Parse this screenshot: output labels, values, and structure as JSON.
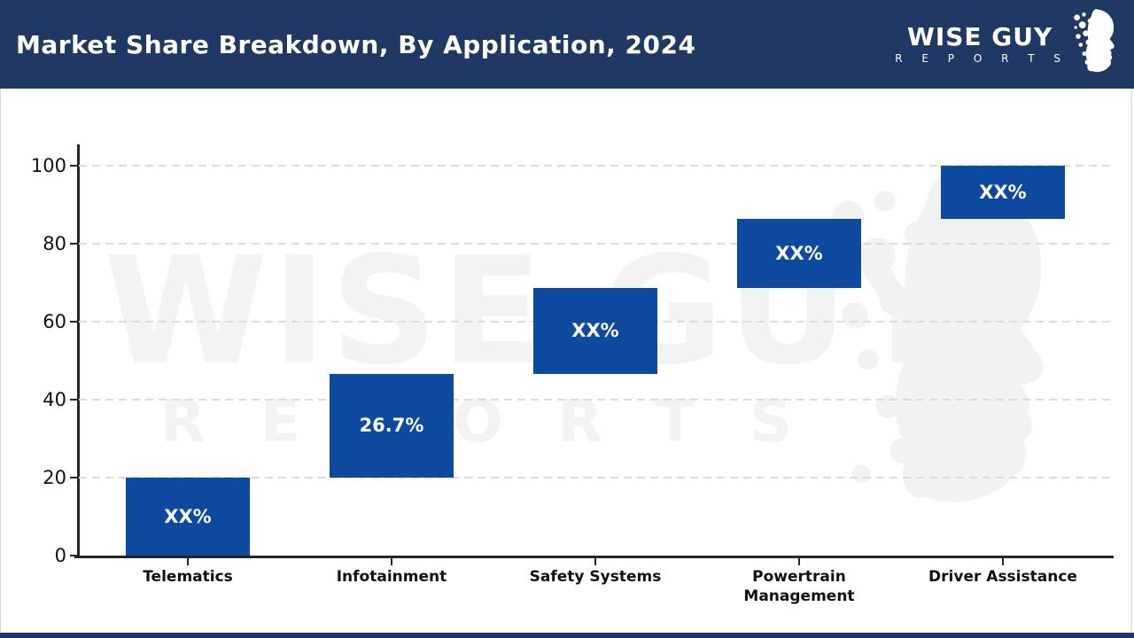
{
  "header": {
    "title": "Market Share Breakdown, By Application, 2024",
    "logo": {
      "wordmark": "WISE GUY",
      "subtext": "R E P O R T S"
    }
  },
  "watermark": {
    "line1": "WISE GUY",
    "line2": "REPORTS"
  },
  "chart_data": {
    "type": "bar",
    "subtype": "waterfall",
    "title": "Market Share Breakdown, By Application, 2024",
    "categories": [
      "Telematics",
      "Infotainment",
      "Safety Systems",
      "Powertrain Management",
      "Driver Assistance"
    ],
    "series": [
      {
        "category": "Telematics",
        "start": 0,
        "end": 20,
        "label": "XX%"
      },
      {
        "category": "Infotainment",
        "start": 20,
        "end": 46.7,
        "label": "26.7%"
      },
      {
        "category": "Safety Systems",
        "start": 46.7,
        "end": 68.6,
        "label": "XX%"
      },
      {
        "category": "Powertrain Management",
        "start": 68.6,
        "end": 86.4,
        "label": "XX%"
      },
      {
        "category": "Driver Assistance",
        "start": 86.4,
        "end": 100,
        "label": "XX%"
      }
    ],
    "yticks": [
      0,
      20,
      40,
      60,
      80,
      100
    ],
    "ylim": [
      0,
      105
    ],
    "xlabel": "",
    "ylabel": "",
    "grid": "horizontal-dashed",
    "legend": "none"
  },
  "colors": {
    "header_bg": "#203864",
    "footer_bg": "#203864",
    "bar": "#0d499e",
    "bar_label": "#ffffff",
    "grid": "#dbdbdb",
    "axis": "#262626",
    "tick_label": "#111111",
    "watermark": "#f3f3f3",
    "background": "#ffffff"
  }
}
